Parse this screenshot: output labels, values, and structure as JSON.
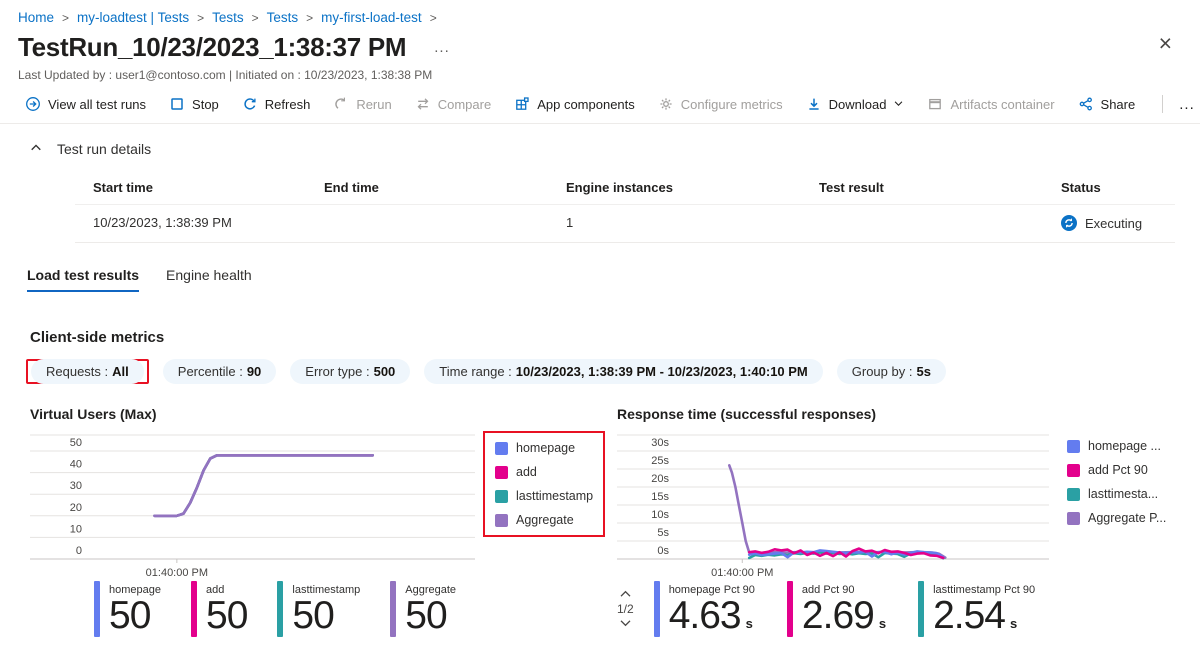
{
  "breadcrumb": {
    "separator": ">",
    "items": [
      "Home",
      "my-loadtest | Tests",
      "Tests",
      "Tests",
      "my-first-load-test"
    ]
  },
  "header": {
    "title": "TestRun_10/23/2023_1:38:37 PM",
    "more_label": "...",
    "close_label": "×",
    "subtitle": "Last Updated by : user1@contoso.com | Initiated on : 10/23/2023, 1:38:38 PM"
  },
  "toolbar": {
    "items": [
      {
        "label": "View all test runs",
        "enabled": true
      },
      {
        "label": "Stop",
        "enabled": true
      },
      {
        "label": "Refresh",
        "enabled": true
      },
      {
        "label": "Rerun",
        "enabled": false
      },
      {
        "label": "Compare",
        "enabled": false
      },
      {
        "label": "App components",
        "enabled": true
      },
      {
        "label": "Configure metrics",
        "enabled": false
      },
      {
        "label": "Download",
        "enabled": true,
        "has_dropdown": true
      },
      {
        "label": "Artifacts container",
        "enabled": false
      },
      {
        "label": "Share",
        "enabled": true
      }
    ],
    "overflow_label": "..."
  },
  "details": {
    "section_title": "Test run details",
    "columns": [
      "Start time",
      "End time",
      "Engine instances",
      "Test result",
      "Status"
    ],
    "row": {
      "start_time": "10/23/2023, 1:38:39 PM",
      "end_time": "",
      "engine_instances": "1",
      "test_result": "",
      "status": "Executing"
    }
  },
  "tabs": {
    "items": [
      {
        "label": "Load test results",
        "active": true
      },
      {
        "label": "Engine health",
        "active": false
      }
    ]
  },
  "metrics": {
    "section_title": "Client-side metrics",
    "filters": [
      {
        "label": "Requests :",
        "value": "All",
        "highlighted": true
      },
      {
        "label": "Percentile :",
        "value": "90",
        "highlighted": false
      },
      {
        "label": "Error type :",
        "value": "500",
        "highlighted": false
      },
      {
        "label": "Time range :",
        "value": "10/23/2023, 1:38:39 PM - 10/23/2023, 1:40:10 PM",
        "highlighted": false
      },
      {
        "label": "Group by :",
        "value": "5s",
        "highlighted": false
      }
    ]
  },
  "colors": {
    "accent": "#0b72c6",
    "highlight_box": "#e81123",
    "homepage": "#637cef",
    "add": "#e3008c",
    "lasttimestamp": "#2aa0a4",
    "aggregate": "#9373c0"
  },
  "chart_data": [
    {
      "type": "line",
      "title": "Virtual Users (Max)",
      "xlabel": "",
      "ylabel": "",
      "ylim": [
        0,
        50
      ],
      "grid": true,
      "legend_position": "right",
      "yticks": [
        {
          "label": "50",
          "value": 50
        },
        {
          "label": "40",
          "value": 40
        },
        {
          "label": "30",
          "value": 30
        },
        {
          "label": "20",
          "value": 20
        },
        {
          "label": "10",
          "value": 10
        },
        {
          "label": "0",
          "value": 0
        }
      ],
      "x_tick": {
        "label": "01:40:00 PM",
        "pct": 33
      },
      "legend": [
        {
          "label": "homepage",
          "color": "#637cef"
        },
        {
          "label": "add",
          "color": "#e3008c"
        },
        {
          "label": "lasttimestamp",
          "color": "#2aa0a4"
        },
        {
          "label": "Aggregate",
          "color": "#9373c0"
        }
      ],
      "series": [
        {
          "name": "homepage",
          "color": "#637cef",
          "points": [
            [
              28,
              20
            ],
            [
              33,
              20
            ],
            [
              34.5,
              21
            ],
            [
              36,
              26
            ],
            [
              37.5,
              33
            ],
            [
              39,
              41
            ],
            [
              40.5,
              46.5
            ],
            [
              42,
              48
            ],
            [
              77,
              48
            ]
          ]
        },
        {
          "name": "add",
          "color": "#e3008c",
          "points": [
            [
              28,
              20
            ],
            [
              33,
              20
            ],
            [
              34.5,
              21
            ],
            [
              36,
              26
            ],
            [
              37.5,
              33
            ],
            [
              39,
              41
            ],
            [
              40.5,
              46.5
            ],
            [
              42,
              48
            ],
            [
              77,
              48
            ]
          ]
        },
        {
          "name": "lasttimestamp",
          "color": "#2aa0a4",
          "points": [
            [
              28,
              20
            ],
            [
              33,
              20
            ],
            [
              34.5,
              21
            ],
            [
              36,
              26
            ],
            [
              37.5,
              33
            ],
            [
              39,
              41
            ],
            [
              40.5,
              46.5
            ],
            [
              42,
              48
            ],
            [
              77,
              48
            ]
          ]
        },
        {
          "name": "Aggregate",
          "color": "#9373c0",
          "points": [
            [
              28,
              20
            ],
            [
              33,
              20
            ],
            [
              34.5,
              21
            ],
            [
              36,
              26
            ],
            [
              37.5,
              33
            ],
            [
              39,
              41
            ],
            [
              40.5,
              46.5
            ],
            [
              42,
              48
            ],
            [
              77,
              48
            ]
          ]
        }
      ]
    },
    {
      "type": "line",
      "title": "Response time (successful responses)",
      "xlabel": "",
      "ylabel": "",
      "ylim": [
        0,
        30
      ],
      "grid": true,
      "legend_position": "right",
      "yticks": [
        {
          "label": "30s",
          "value": 30
        },
        {
          "label": "25s",
          "value": 25
        },
        {
          "label": "20s",
          "value": 20
        },
        {
          "label": "15s",
          "value": 15
        },
        {
          "label": "10s",
          "value": 10
        },
        {
          "label": "5s",
          "value": 5
        },
        {
          "label": "0s",
          "value": 0
        }
      ],
      "x_tick": {
        "label": "01:40:00 PM",
        "pct": 29
      },
      "legend": [
        {
          "label": "homepage ...",
          "color": "#637cef"
        },
        {
          "label": "add Pct 90",
          "color": "#e3008c"
        },
        {
          "label": "lasttimesta...",
          "color": "#2aa0a4"
        },
        {
          "label": "Aggregate P...",
          "color": "#9373c0"
        }
      ],
      "series": [
        {
          "name": "Aggregate Pct 90",
          "color": "#9373c0",
          "points": [
            [
              26,
              26
            ],
            [
              26.6,
              24
            ],
            [
              27.4,
              20
            ],
            [
              28.2,
              15
            ],
            [
              29,
              10
            ],
            [
              29.8,
              5
            ],
            [
              30.6,
              1.8
            ],
            [
              33,
              1.7
            ],
            [
              36,
              1.9
            ],
            [
              39,
              1.8
            ],
            [
              42,
              1.9
            ],
            [
              45,
              1.8
            ],
            [
              48,
              1.9
            ],
            [
              51,
              1.8
            ],
            [
              54,
              1.9
            ],
            [
              57,
              2.0
            ],
            [
              60,
              1.9
            ],
            [
              63,
              1.9
            ],
            [
              66,
              1.8
            ],
            [
              69,
              1.9
            ],
            [
              71,
              1.9
            ],
            [
              73,
              1.8
            ],
            [
              74.5,
              1.5
            ],
            [
              76,
              0.4
            ]
          ]
        },
        {
          "name": "lasttimestamp Pct 90",
          "color": "#2aa0a4",
          "points": [
            [
              30.6,
              0.3
            ],
            [
              32,
              1.1
            ],
            [
              33.5,
              0.9
            ],
            [
              35,
              1.2
            ],
            [
              36.5,
              1.0
            ],
            [
              38,
              1.3
            ],
            [
              39.5,
              1.1
            ],
            [
              41,
              1.6
            ],
            [
              42.5,
              1.4
            ],
            [
              44,
              1.7
            ],
            [
              45.5,
              1.5
            ],
            [
              47,
              1.8
            ],
            [
              48.5,
              1.5
            ],
            [
              50,
              1.7
            ],
            [
              51.5,
              1.4
            ],
            [
              53,
              1.6
            ],
            [
              54.5,
              1.3
            ],
            [
              56,
              1.6
            ],
            [
              57.5,
              1.4
            ],
            [
              59,
              1.5
            ],
            [
              60.5,
              0.5
            ],
            [
              62,
              1.7
            ],
            [
              63.5,
              1.5
            ],
            [
              65,
              1.4
            ],
            [
              66.5,
              0.6
            ],
            [
              68,
              1.6
            ],
            [
              69.5,
              1.8
            ],
            [
              71,
              1.6
            ],
            [
              72.5,
              1.5
            ],
            [
              74,
              1.4
            ],
            [
              75.5,
              0.2
            ]
          ]
        },
        {
          "name": "homepage Pct 90",
          "color": "#637cef",
          "points": [
            [
              30.6,
              1.2
            ],
            [
              32,
              1.6
            ],
            [
              33.5,
              1.1
            ],
            [
              35,
              1.3
            ],
            [
              36.5,
              1.5
            ],
            [
              38,
              1.7
            ],
            [
              39.5,
              0.5
            ],
            [
              41,
              1.9
            ],
            [
              42.5,
              1.8
            ],
            [
              44,
              2.0
            ],
            [
              45.5,
              1.9
            ],
            [
              47,
              2.4
            ],
            [
              48.5,
              2.2
            ],
            [
              50,
              2.0
            ],
            [
              51.5,
              1.8
            ],
            [
              53,
              1.7
            ],
            [
              54.5,
              1.9
            ],
            [
              56,
              1.8
            ],
            [
              57.5,
              2.0
            ],
            [
              59,
              0.7
            ],
            [
              60.5,
              1.9
            ],
            [
              62,
              2.0
            ],
            [
              63.5,
              1.3
            ],
            [
              65,
              1.8
            ],
            [
              66.5,
              1.2
            ],
            [
              68,
              1.7
            ],
            [
              69.5,
              2.1
            ],
            [
              71,
              1.9
            ],
            [
              72.5,
              1.8
            ],
            [
              74,
              1.6
            ],
            [
              75.5,
              0.5
            ]
          ]
        },
        {
          "name": "add Pct 90",
          "color": "#e3008c",
          "points": [
            [
              30.6,
              1.9
            ],
            [
              32,
              2.1
            ],
            [
              33.5,
              1.7
            ],
            [
              35,
              2.0
            ],
            [
              36.5,
              2.7
            ],
            [
              38,
              2.4
            ],
            [
              39.5,
              2.6
            ],
            [
              41,
              1.6
            ],
            [
              42.5,
              2.4
            ],
            [
              44,
              1.1
            ],
            [
              45.5,
              1.8
            ],
            [
              47,
              0.9
            ],
            [
              48.5,
              1.7
            ],
            [
              50,
              0.8
            ],
            [
              51.5,
              1.9
            ],
            [
              53,
              0.7
            ],
            [
              54.5,
              2.2
            ],
            [
              56,
              2.9
            ],
            [
              57.5,
              2.1
            ],
            [
              59,
              2.3
            ],
            [
              60.5,
              1.6
            ],
            [
              62,
              2.5
            ],
            [
              63.5,
              2.0
            ],
            [
              65,
              2.1
            ],
            [
              66.5,
              1.7
            ],
            [
              68,
              1.1
            ],
            [
              69.5,
              1.5
            ],
            [
              71,
              1.6
            ],
            [
              72.5,
              1.0
            ],
            [
              74,
              0.9
            ],
            [
              75.5,
              0.3
            ]
          ]
        }
      ]
    }
  ],
  "left_stats": {
    "cards": [
      {
        "label": "homepage",
        "value": "50",
        "color": "#637cef"
      },
      {
        "label": "add",
        "value": "50",
        "color": "#e3008c"
      },
      {
        "label": "lasttimestamp",
        "value": "50",
        "color": "#2aa0a4"
      },
      {
        "label": "Aggregate",
        "value": "50",
        "color": "#9373c0"
      }
    ]
  },
  "right_stats": {
    "pager": "1/2",
    "cards": [
      {
        "label": "homepage Pct 90",
        "value": "4.63",
        "unit": "s",
        "color": "#637cef"
      },
      {
        "label": "add Pct 90",
        "value": "2.69",
        "unit": "s",
        "color": "#e3008c"
      },
      {
        "label": "lasttimestamp Pct 90",
        "value": "2.54",
        "unit": "s",
        "color": "#2aa0a4"
      }
    ]
  }
}
